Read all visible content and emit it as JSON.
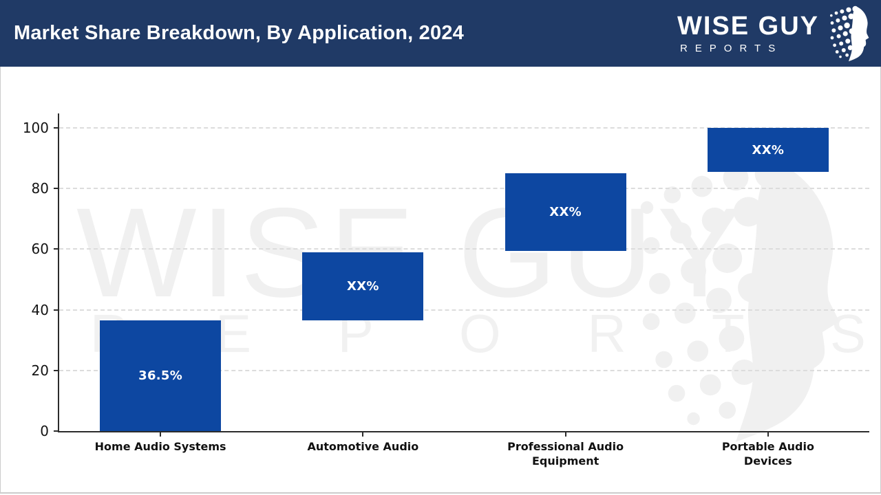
{
  "header": {
    "title": "Market Share Breakdown, By Application, 2024",
    "bg_color": "#203a66",
    "logo": {
      "line1": "WISE GUY",
      "line2": "REPORTS"
    }
  },
  "watermark": {
    "line1": "WISE GUY",
    "line2": "R E P O R T S"
  },
  "chart_data": {
    "type": "bar",
    "subtype": "floating-waterfall",
    "title": "Market Share Breakdown, By Application, 2024",
    "xlabel": "",
    "ylabel": "",
    "categories": [
      "Home Audio Systems",
      "Automotive Audio",
      "Professional Audio Equipment",
      "Portable Audio Devices"
    ],
    "category_lines": [
      [
        "Home Audio Systems"
      ],
      [
        "Automotive Audio"
      ],
      [
        "Professional Audio",
        "Equipment"
      ],
      [
        "Portable Audio",
        "Devices"
      ]
    ],
    "series": [
      {
        "name": "Market Share %",
        "segments": [
          {
            "category": "Home Audio Systems",
            "start": 0,
            "end": 36.5,
            "label": "36.5%"
          },
          {
            "category": "Automotive Audio",
            "start": 36.5,
            "end": 59,
            "label": "XX%"
          },
          {
            "category": "Professional Audio Equipment",
            "start": 59.5,
            "end": 85,
            "label": "XX%"
          },
          {
            "category": "Portable Audio Devices",
            "start": 85.5,
            "end": 100,
            "label": "XX%"
          }
        ]
      }
    ],
    "yticks": [
      0,
      20,
      40,
      60,
      80,
      100
    ],
    "ylim": [
      0,
      104.8
    ],
    "grid": "horizontal-dashed",
    "legend": "none",
    "bar_color": "#0d47a1",
    "bar_label_color": "#ffffff",
    "axis_color": "#2b2b2b",
    "grid_color": "#dcdcdc"
  }
}
